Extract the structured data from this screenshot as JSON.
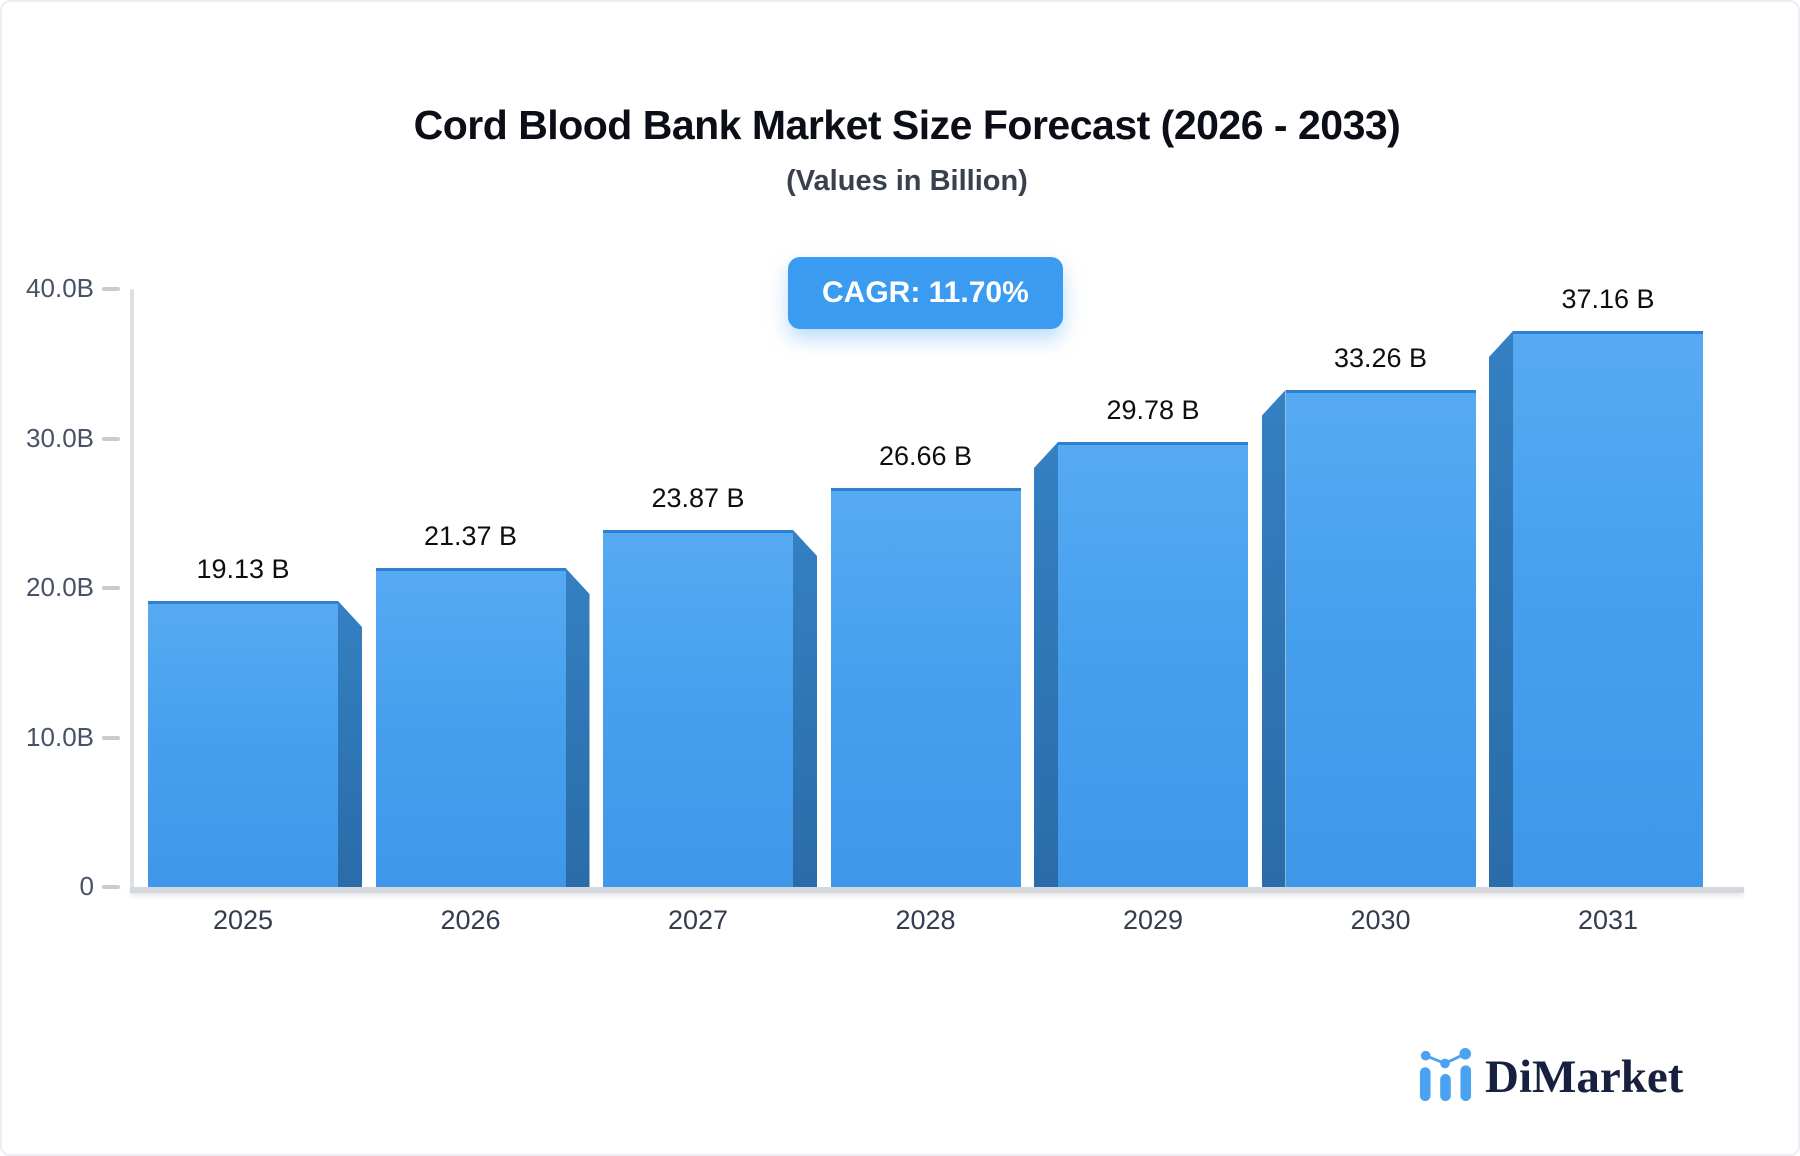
{
  "chart_data": {
    "type": "bar",
    "title": "Cord Blood Bank Market Size Forecast (2026 - 2033)",
    "subtitle": "(Values in Billion)",
    "cagr_label": "CAGR: 11.70%",
    "categories": [
      "2025",
      "2026",
      "2027",
      "2028",
      "2029",
      "2030",
      "2031"
    ],
    "values": [
      19.13,
      21.37,
      23.87,
      26.66,
      29.78,
      33.26,
      37.16
    ],
    "value_labels": [
      "19.13 B",
      "21.37 B",
      "23.87 B",
      "26.66 B",
      "29.78 B",
      "33.26 B",
      "37.16 B"
    ],
    "xlabel": "",
    "ylabel": "",
    "ylim": [
      0,
      40
    ],
    "yticks": [
      {
        "value": 40,
        "label": "40.0B"
      },
      {
        "value": 30,
        "label": "30.0B"
      },
      {
        "value": 20,
        "label": "20.0B"
      },
      {
        "value": 10,
        "label": "10.0B"
      },
      {
        "value": 0,
        "label": "0"
      }
    ],
    "grid": false,
    "legend": "none",
    "colors": {
      "bar_face_top": "#57aaf2",
      "bar_face_bottom": "#3f97ea",
      "bar_side": "#2e76b5",
      "badge_background": "#3b9bf0",
      "badge_text": "#ffffff",
      "axis": "#d4d8dd",
      "tick_text": "#475269",
      "title_text": "#0b0d17"
    }
  },
  "logo": {
    "text": "DiMarket",
    "icon": "mini-bar-chart-icon",
    "icon_color": "#4aa3f0",
    "text_color": "#17203f"
  }
}
